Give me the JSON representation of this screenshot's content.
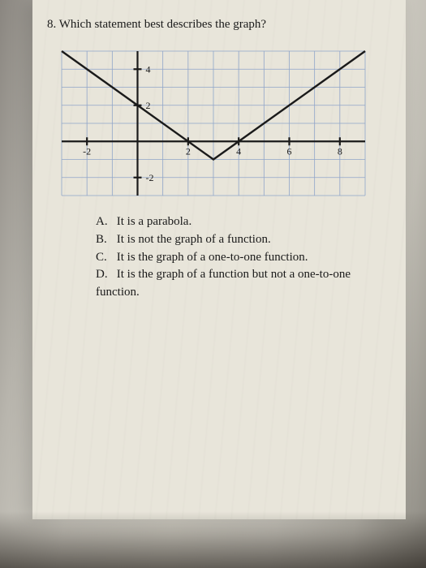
{
  "question": {
    "number": "8.",
    "text": "Which statement best describes the graph?"
  },
  "chart": {
    "type": "line",
    "xlim": [
      -3,
      9
    ],
    "ylim": [
      -3,
      5
    ],
    "xtick_labels": [
      {
        "x": -2,
        "label": "-2"
      },
      {
        "x": 2,
        "label": "2"
      },
      {
        "x": 4,
        "label": "4"
      },
      {
        "x": 6,
        "label": "6"
      },
      {
        "x": 8,
        "label": "8"
      }
    ],
    "ytick_labels": [
      {
        "y": -2,
        "label": "-2"
      },
      {
        "y": 2,
        "label": "2"
      },
      {
        "y": 4,
        "label": "4"
      }
    ],
    "grid_color": "#8fa5c9",
    "grid_width": 0.8,
    "axis_color": "#1a1a1a",
    "axis_width": 2.2,
    "tick_size": 5,
    "line_color": "#1a1a1a",
    "line_width": 2.4,
    "line_points": [
      {
        "x": -3,
        "y": 5
      },
      {
        "x": 3,
        "y": -1
      },
      {
        "x": 9,
        "y": 5
      }
    ],
    "label_fontsize": 12,
    "background_color": "#e8e5da"
  },
  "answers": [
    {
      "letter": "A.",
      "text": "It is a parabola."
    },
    {
      "letter": "B.",
      "text": "It is not the graph of a function."
    },
    {
      "letter": "C.",
      "text": "It is the graph of a one-to-one function."
    },
    {
      "letter": "D.",
      "text": "It is the graph of a function but not a one-to-one function."
    }
  ]
}
